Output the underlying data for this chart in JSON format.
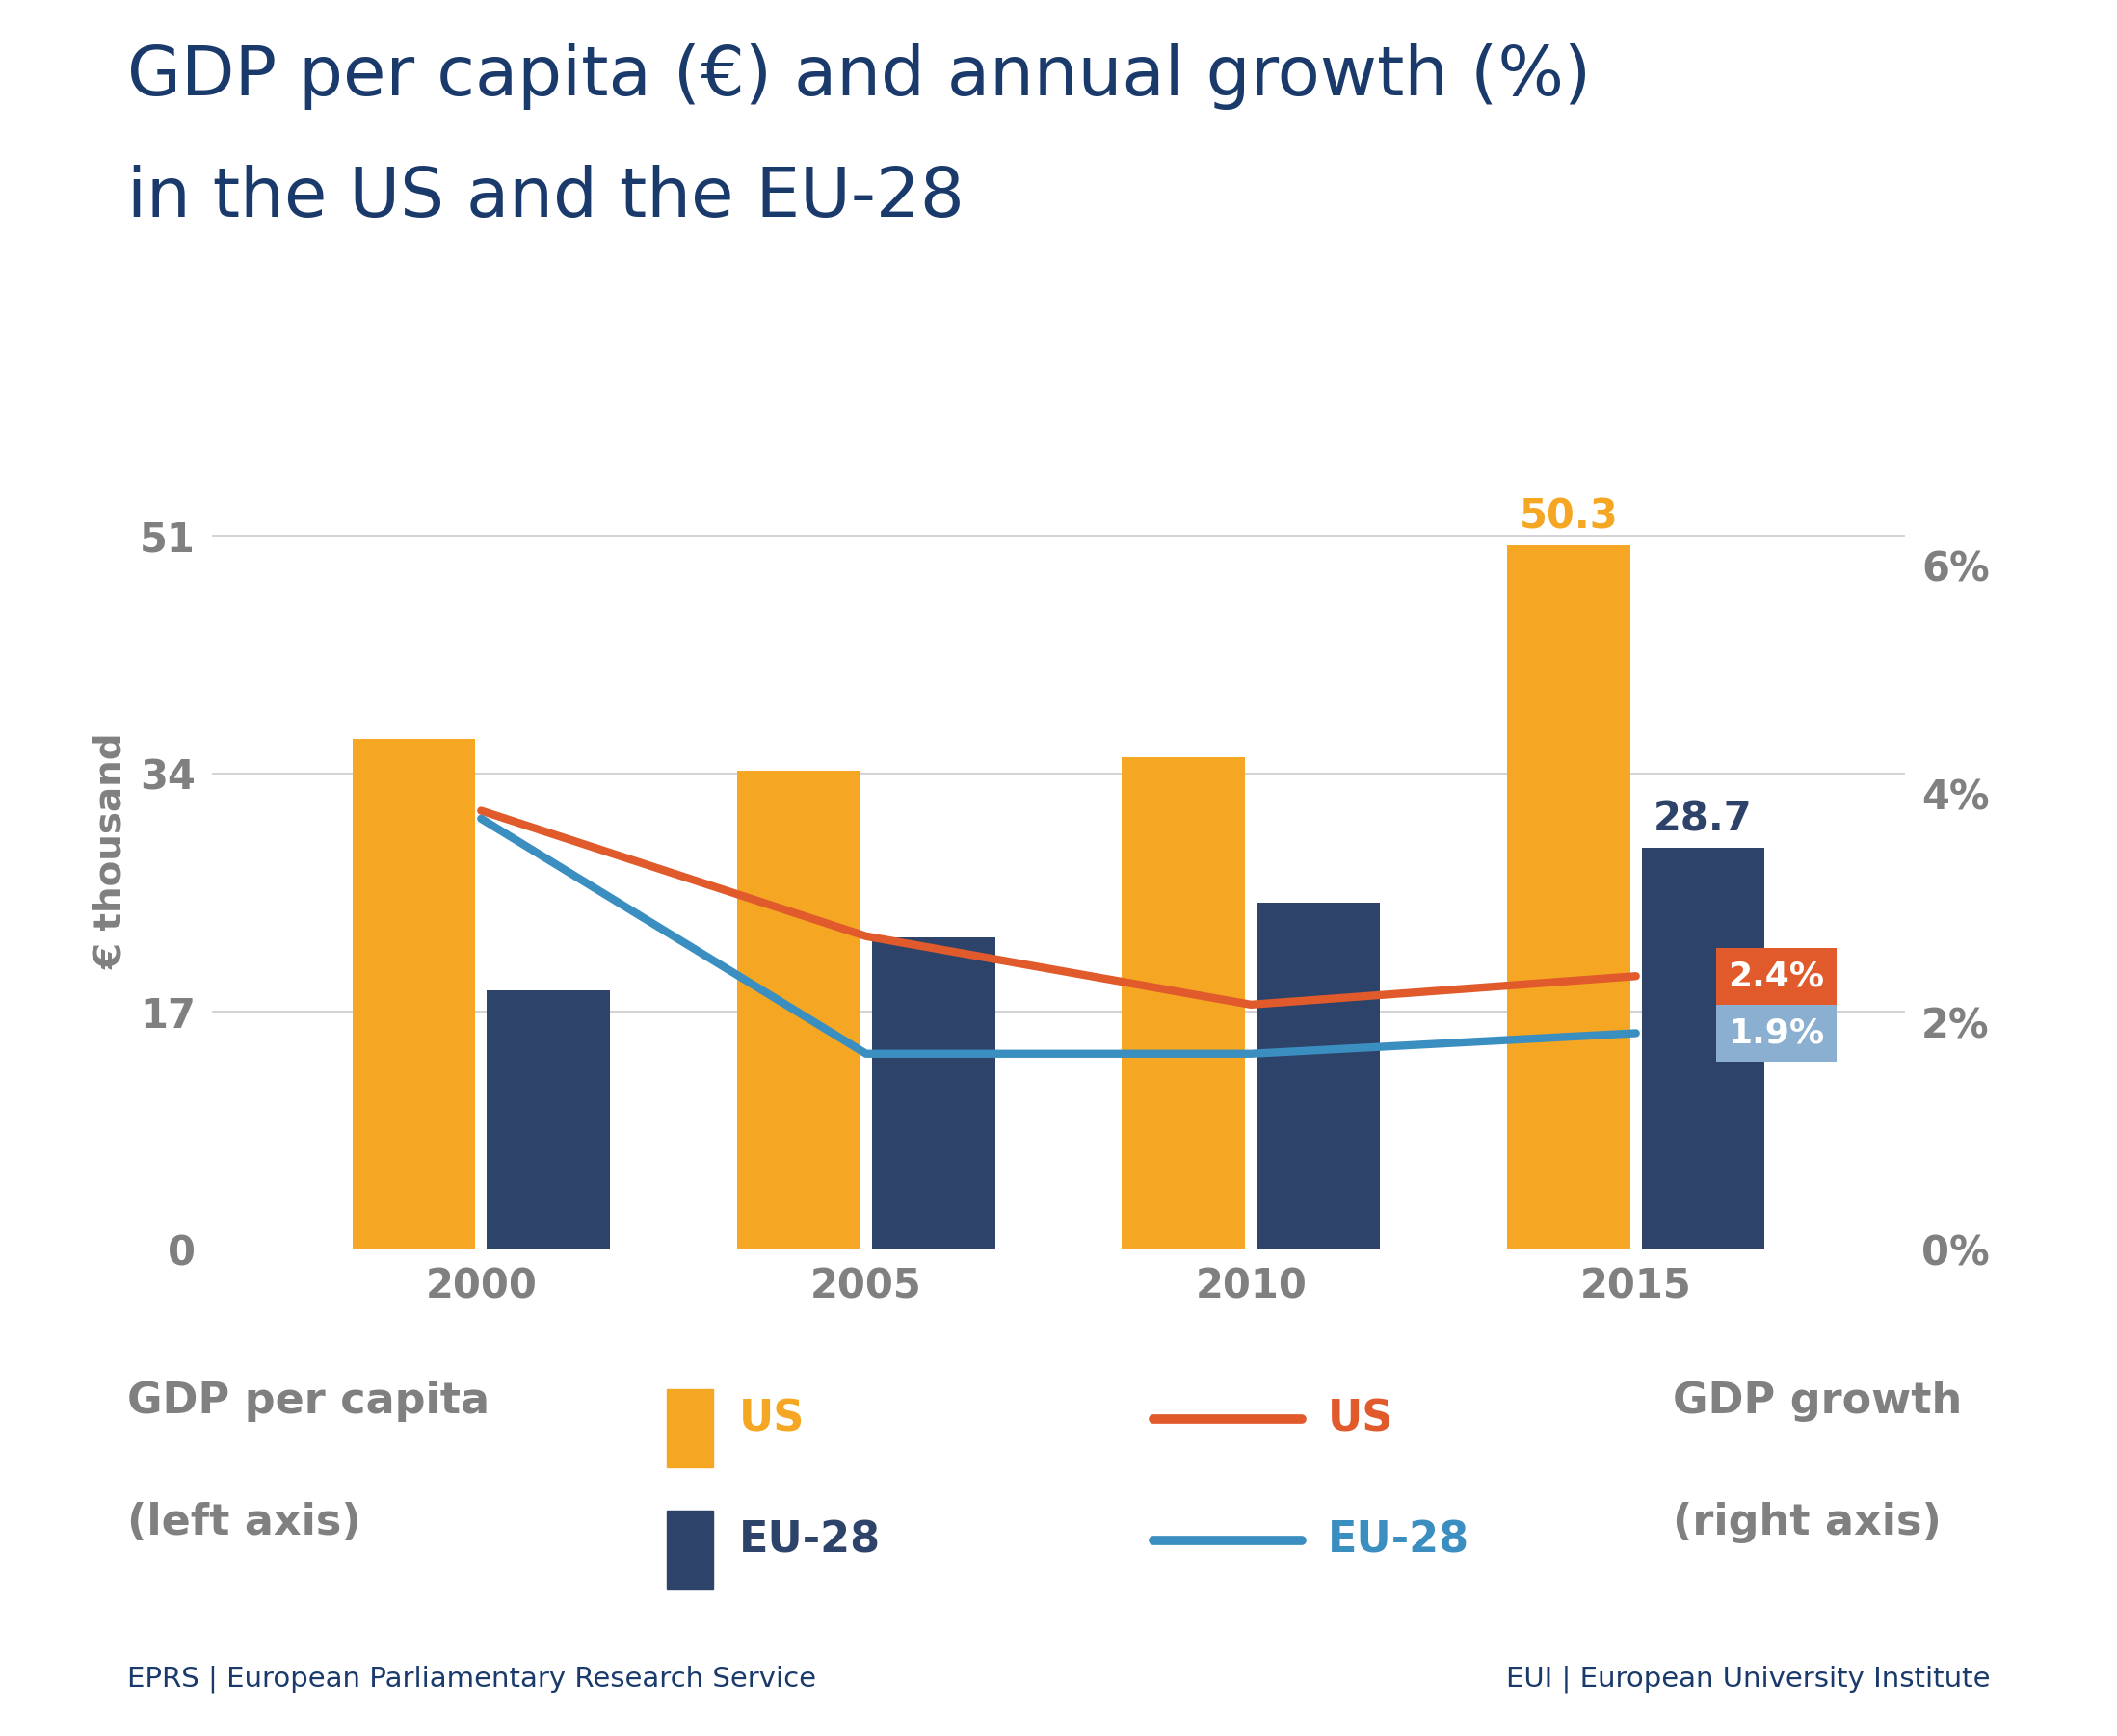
{
  "years": [
    2000,
    2005,
    2010,
    2015
  ],
  "us_gdp_per_capita": [
    36.5,
    34.2,
    35.2,
    50.3
  ],
  "eu_gdp_per_capita": [
    18.5,
    22.3,
    24.8,
    28.7
  ],
  "us_growth": [
    3.85,
    2.75,
    2.15,
    2.4
  ],
  "eu_growth": [
    3.78,
    1.72,
    1.72,
    1.9
  ],
  "us_bar_color": "#F5A623",
  "eu_bar_color": "#2E4369",
  "us_line_color": "#E05A2B",
  "eu_line_color": "#3A8FC0",
  "title_line1": "GDP per capita (€) and annual growth (%)",
  "title_line2": "in the US and the EU-28",
  "title_color": "#1A3A6B",
  "ylabel_left": "€ thousand",
  "yticks_left": [
    0,
    17,
    34,
    51
  ],
  "ytick_labels_left": [
    "0",
    "17",
    "34",
    "51"
  ],
  "yticks_right": [
    0,
    2,
    4,
    6
  ],
  "ytick_labels_right": [
    "0%",
    "2%",
    "4%",
    "6%"
  ],
  "bar_width": 1.6,
  "bar_annotation_us_2015": "50.3",
  "bar_annotation_eu_2015": "28.7",
  "line_annotation_us": "2.4%",
  "line_annotation_eu": "1.9%",
  "footer_left": "EPRS | European Parliamentary Research Service",
  "footer_right": "EUI | European University Institute",
  "footer_color": "#1A3A6B",
  "grid_color": "#CCCCCC",
  "background_color": "#FFFFFF",
  "tick_label_color": "#808080",
  "legend_text_color": "#808080"
}
